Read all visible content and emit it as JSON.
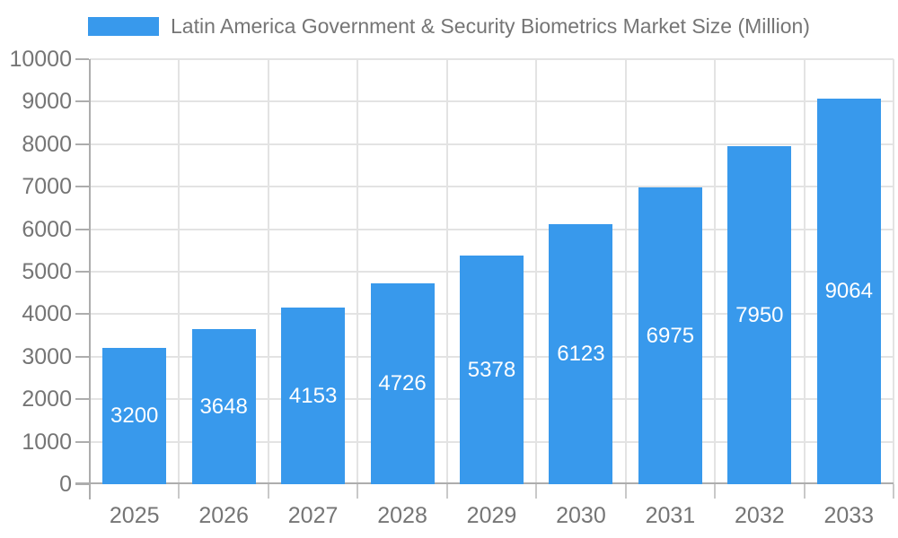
{
  "legend": {
    "series_label": "Latin America Government & Security Biometrics Market Size (Million)"
  },
  "colors": {
    "bar": "#3899EC",
    "axis_text": "#757575",
    "value_label": "#ffffff",
    "gridline": "#e3e3e3",
    "axis_line": "#adadad"
  },
  "chart_data": {
    "type": "bar",
    "title": "Latin America Government & Security Biometrics Market Size (Million)",
    "categories": [
      "2025",
      "2026",
      "2027",
      "2028",
      "2029",
      "2030",
      "2031",
      "2032",
      "2033"
    ],
    "values": [
      3200,
      3648,
      4153,
      4726,
      5378,
      6123,
      6975,
      7950,
      9064
    ],
    "xlabel": "",
    "ylabel": "",
    "ylim": [
      0,
      10000
    ],
    "ytick_step": 1000,
    "yticks": [
      0,
      1000,
      2000,
      3000,
      4000,
      5000,
      6000,
      7000,
      8000,
      9000,
      10000
    ],
    "grid": true,
    "legend_position": "top",
    "value_labels": "inside-center"
  }
}
